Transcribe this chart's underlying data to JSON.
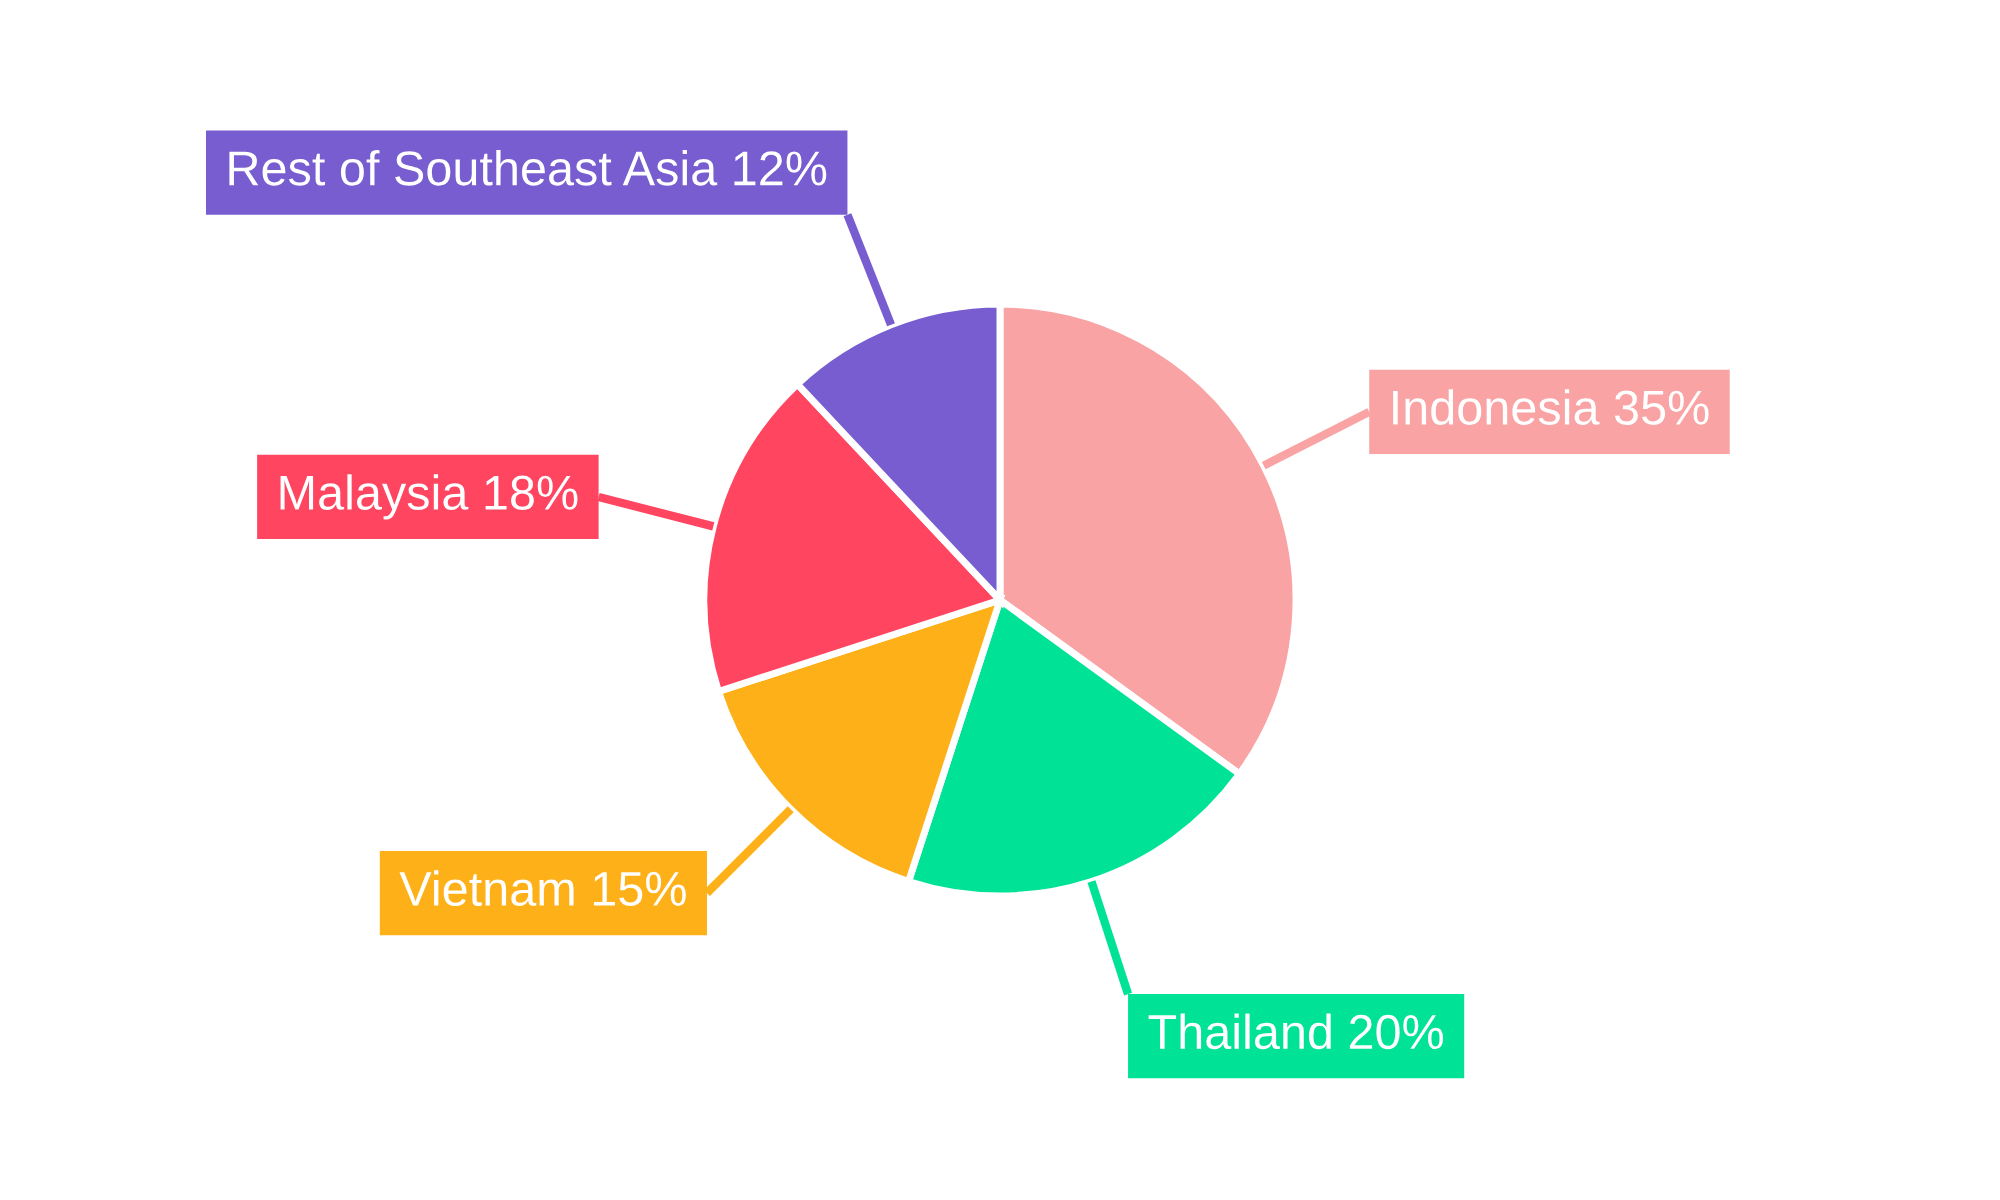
{
  "chart_data": {
    "type": "pie",
    "categories": [
      "Indonesia",
      "Thailand",
      "Vietnam",
      "Malaysia",
      "Rest of Southeast Asia"
    ],
    "values": [
      35,
      20,
      15,
      18,
      12
    ],
    "value_labels": [
      "35%",
      "20%",
      "15%",
      "18%",
      "12%"
    ],
    "colors": [
      "#f9a3a4",
      "#00e396",
      "#feb019",
      "#ff4560",
      "#775dd0"
    ]
  }
}
